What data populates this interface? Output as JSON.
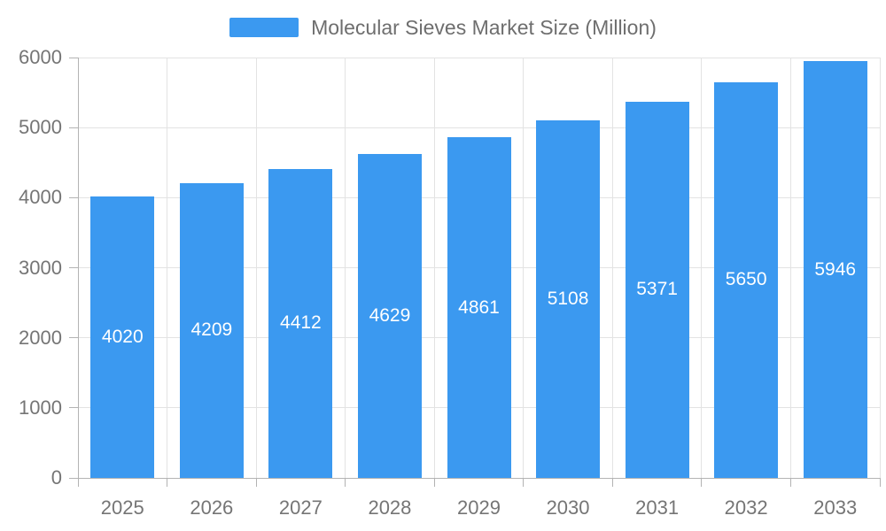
{
  "legend": {
    "label": "Molecular Sieves Market Size (Million)"
  },
  "chart_data": {
    "type": "bar",
    "title": "Molecular Sieves Market Size (Million)",
    "categories": [
      "2025",
      "2026",
      "2027",
      "2028",
      "2029",
      "2030",
      "2031",
      "2032",
      "2033"
    ],
    "series": [
      {
        "name": "Molecular Sieves Market Size (Million)",
        "values": [
          4020,
          4209,
          4412,
          4629,
          4861,
          5108,
          5371,
          5650,
          5946
        ]
      }
    ],
    "xlabel": "",
    "ylabel": "",
    "ylim": [
      0,
      6000
    ],
    "yticks": [
      0,
      1000,
      2000,
      3000,
      4000,
      5000,
      6000
    ],
    "grid": true,
    "legend_position": "top-center",
    "value_label_position": "inside-center"
  },
  "colors": {
    "bar": "#3B99F0",
    "axis_line": "#B3B3B3",
    "gridline": "#E3E3E3",
    "tick_label": "#757575",
    "legend_text": "#6E6E6E",
    "value_label": "#FFFFFF",
    "background": "#FFFFFF"
  }
}
